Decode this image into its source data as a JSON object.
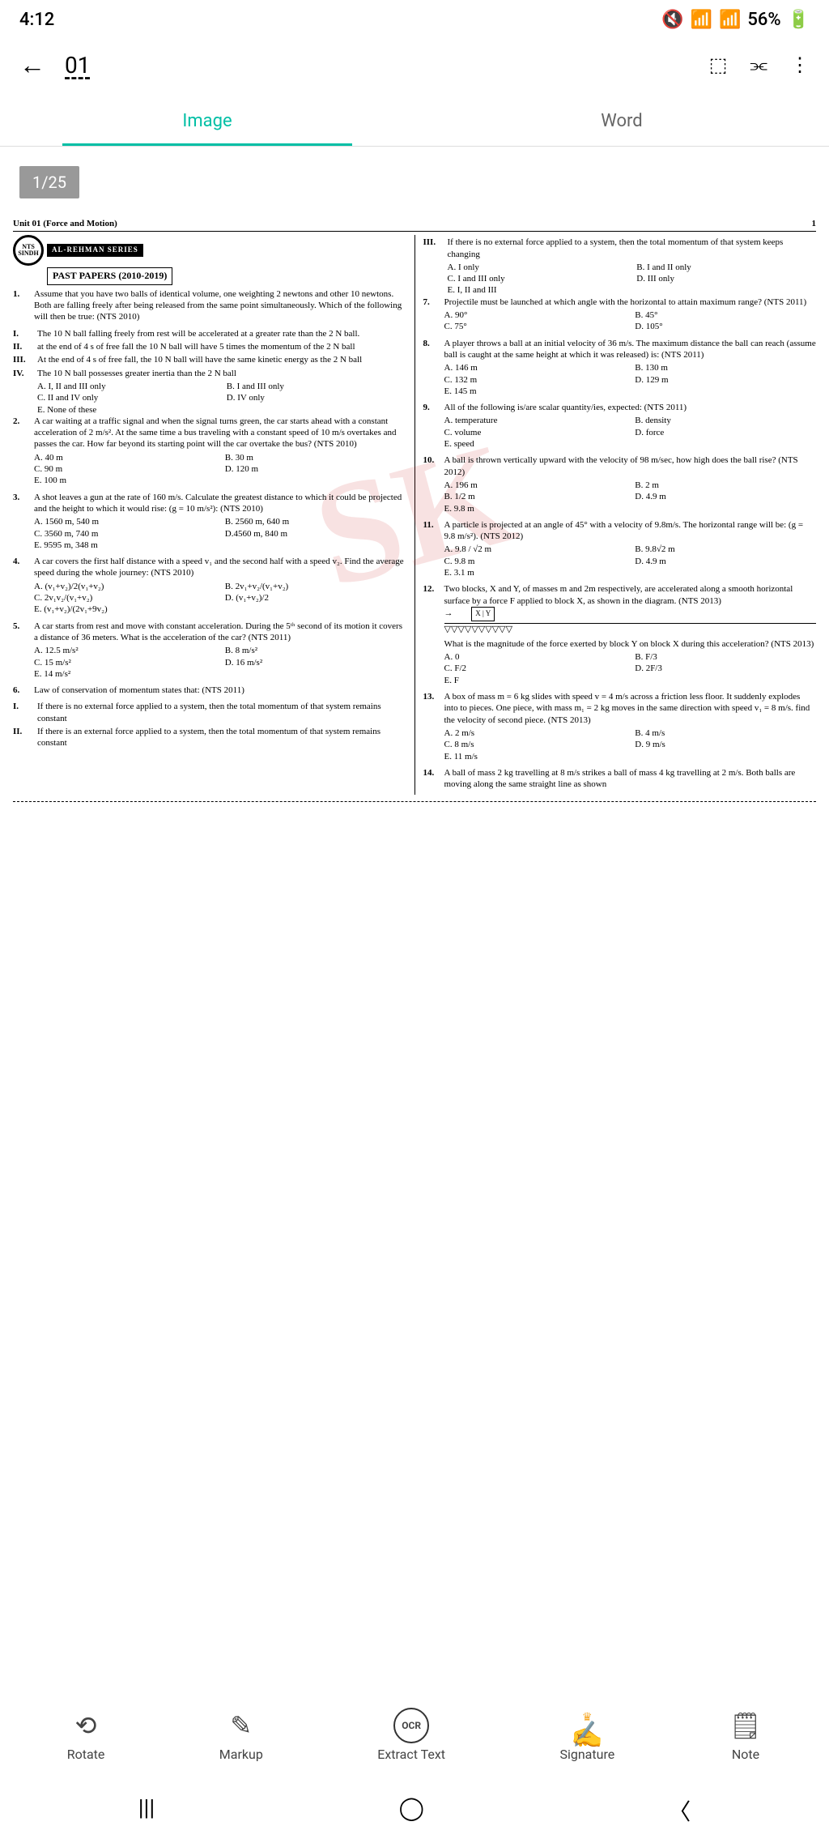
{
  "status": {
    "time": "4:12",
    "battery": "56%",
    "vibrate_icon": "📳",
    "wifi_icon": "📶",
    "signal_icon": "📶"
  },
  "header": {
    "title": "01",
    "crop_icon": "▢",
    "share_icon": "⋔",
    "more_icon": "⋮"
  },
  "tabs": {
    "image": "Image",
    "word": "Word"
  },
  "page_indicator": "1/25",
  "doc": {
    "unit_title": "Unit 01 (Force and Motion)",
    "page_num": "1",
    "logo_top": "NTS",
    "logo_bottom": "SINDH",
    "series": "AL-REHMAN  SERIES",
    "papers": "PAST PAPERS (2010-2019)",
    "left": [
      {
        "n": "1.",
        "t": "Assume that you have two balls of identical volume, one weighting 2 newtons and other 10 newtons. Both are falling freely after being released from the same point simultaneously. Which of the following will then be true: (NTS 2010)"
      },
      {
        "n": "I.",
        "t": "The 10 N ball falling freely from rest will be accelerated at a greater rate than the 2 N ball.",
        "sub": true
      },
      {
        "n": "II.",
        "t": "at the end of 4 s of free fall the 10 N ball will have 5 times the momentum of the 2 N ball",
        "sub": true
      },
      {
        "n": "III.",
        "t": "At the end of 4 s of free fall, the 10 N ball will have the same kinetic energy as the 2 N ball",
        "sub": true
      },
      {
        "n": "IV.",
        "t": "The 10 N ball possesses greater inertia than the 2 N ball",
        "sub": true,
        "opts": [
          "A. I, II and III only",
          "B. I and III only",
          "C. II and IV only",
          "D. IV only",
          "E. None of these"
        ]
      },
      {
        "n": "2.",
        "t": "A car waiting at a traffic signal and when the signal turns green, the car starts ahead with a constant acceleration of 2 m/s². At the same time a bus traveling with a constant speed of 10 m/s overtakes and passes the car. How far beyond its starting point will the car overtake the bus? (NTS 2010)",
        "opts": [
          "A. 40 m",
          "B. 30 m",
          "C. 90 m",
          "D. 120 m",
          "E. 100 m"
        ]
      },
      {
        "n": "3.",
        "t": "A shot leaves a gun at the rate of 160 m/s. Calculate the greatest distance to which it could be projected and the height to which it would rise: (g = 10 m/s²): (NTS 2010)",
        "opts": [
          "A. 1560 m, 540 m",
          "B. 2560 m, 640 m",
          "C. 3560 m, 740 m",
          "D.4560 m, 840 m",
          "E. 9595 m, 348 m"
        ]
      },
      {
        "n": "4.",
        "t": "A car covers the first half distance with a speed v₁ and the second half with a speed v₂. Find the average speed during the whole journey: (NTS 2010)",
        "opts": [
          "A. (v₁+v₂)/2(v₁+v₂)",
          "B. 2v₁+v₂/(v₁+v₂)",
          "C. 2v₁v₂/(v₁+v₂)",
          "D. (v₁+v₂)/2",
          "E. (v₁+v₂)/(2v₁+9v₂)"
        ]
      },
      {
        "n": "5.",
        "t": "A car starts from rest and move with constant acceleration. During the 5ᵗʰ second of its motion it covers a distance of 36 meters. What is the acceleration of the car? (NTS 2011)",
        "opts": [
          "A. 12.5 m/s²",
          "B. 8 m/s²",
          "C. 15 m/s²",
          "D. 16 m/s²",
          "E. 14 m/s²"
        ]
      },
      {
        "n": "6.",
        "t": "Law of conservation of momentum states that: (NTS 2011)"
      },
      {
        "n": "I.",
        "t": "If there is no external force applied to a system, then the total momentum of that system remains constant",
        "sub": true
      },
      {
        "n": "II.",
        "t": "If there is an external force applied to a system, then the total momentum of that system remains constant",
        "sub": true
      }
    ],
    "right": [
      {
        "n": "III.",
        "t": "If there is no external force applied to a system, then the total momentum of that system keeps changing",
        "sub": true,
        "opts": [
          "A. I only",
          "B. I and II only",
          "C. I and III only",
          "D. III only",
          "E. I, II and III"
        ]
      },
      {
        "n": "7.",
        "t": "Projectile must be launched at which angle with the horizontal to attain maximum range? (NTS 2011)",
        "opts": [
          "A. 90°",
          "B. 45°",
          "C. 75°",
          "D. 105°"
        ]
      },
      {
        "n": "8.",
        "t": "A player throws a ball at an initial velocity of 36 m/s. The maximum distance the ball can reach (assume ball is caught at the same height at which it was released) is: (NTS 2011)",
        "opts": [
          "A. 146 m",
          "B. 130 m",
          "C. 132 m",
          "D. 129 m",
          "E. 145 m"
        ]
      },
      {
        "n": "9.",
        "t": "All of the following is/are scalar quantity/ies, expected: (NTS 2011)",
        "opts": [
          "A. temperature",
          "B. density",
          "C. volume",
          "D. force",
          "E. speed"
        ]
      },
      {
        "n": "10.",
        "t": "A ball is thrown vertically upward with the velocity of 98 m/sec, how high does the ball rise? (NTS 2012)",
        "opts": [
          "A. 196 m",
          "B. 2 m",
          "B. 1/2 m",
          "D. 4.9 m",
          "E. 9.8 m"
        ]
      },
      {
        "n": "11.",
        "t": "A particle is projected at an angle of 45° with a velocity of 9.8m/s. The horizontal range will be: (g = 9.8 m/s²). (NTS 2012)",
        "opts": [
          "A. 9.8 / √2 m",
          "B. 9.8√2 m",
          "C. 9.8 m",
          "D. 4.9 m",
          "E. 3.1 m"
        ]
      },
      {
        "n": "12.",
        "t": "Two blocks, X and Y, of masses m and 2m respectively, are accelerated along a smooth horizontal surface by a force F applied to block X, as shown in the diagram. (NTS 2013)",
        "diagram": true,
        "t2": "What is the magnitude of the force exerted by block Y on block X during this acceleration? (NTS 2013)",
        "opts": [
          "A. 0",
          "B. F/3",
          "C. F/2",
          "D. 2F/3",
          "E. F"
        ]
      },
      {
        "n": "13.",
        "t": "A box of mass m = 6 kg slides with speed v = 4 m/s across a friction less floor. It suddenly explodes into to pieces. One piece, with mass m₁ = 2 kg moves in the same direction with speed v₁ = 8 m/s. find the velocity of second piece. (NTS 2013)",
        "opts": [
          "A. 2 m/s",
          "B. 4 m/s",
          "C. 8 m/s",
          "D. 9 m/s",
          "E. 11 m/s"
        ]
      },
      {
        "n": "14.",
        "t": "A ball of mass 2 kg travelling at 8 m/s strikes a ball of mass 4 kg travelling at 2 m/s. Both balls are moving along the same straight line as shown"
      }
    ]
  },
  "toolbar": {
    "rotate": "Rotate",
    "markup": "Markup",
    "extract": "Extract Text",
    "signature": "Signature",
    "note": "Note"
  }
}
